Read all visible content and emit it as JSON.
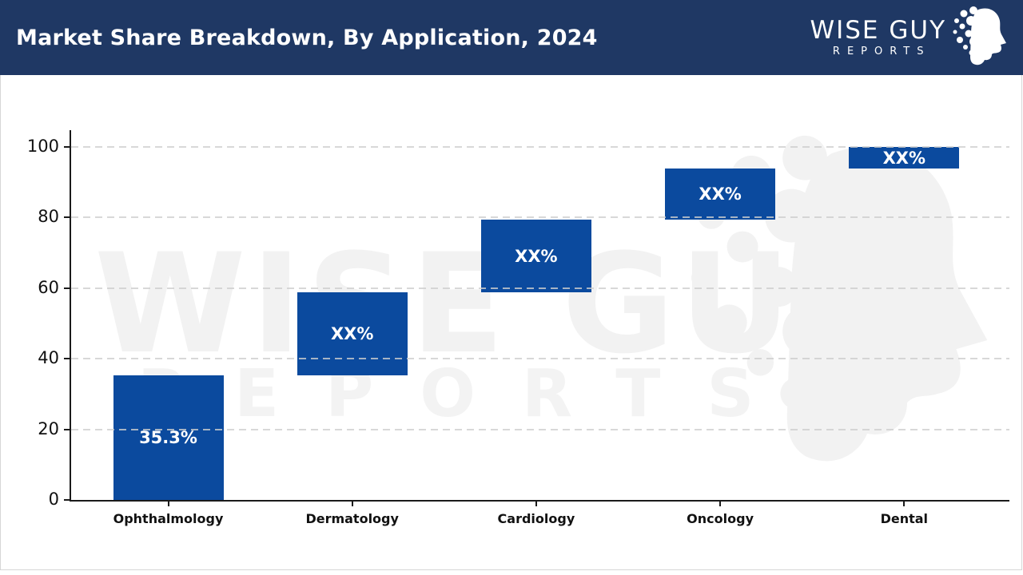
{
  "header": {
    "title": "Market Share Breakdown, By Application, 2024",
    "bg_color": "#1f3864",
    "logo": {
      "line1": "WISE GUY",
      "line2": "REPORTS"
    }
  },
  "watermark": {
    "line1": "WISE GUY",
    "line2": "REPORTS"
  },
  "chart_data": {
    "type": "bar",
    "subtype": "waterfall",
    "title": "Market Share Breakdown, By Application, 2024",
    "categories": [
      "Ophthalmology",
      "Dermatology",
      "Cardiology",
      "Oncology",
      "Dental"
    ],
    "segments": [
      {
        "category": "Ophthalmology",
        "start": 0,
        "end": 35.3,
        "label": "35.3%"
      },
      {
        "category": "Dermatology",
        "start": 35.3,
        "end": 58.8,
        "label": "XX%"
      },
      {
        "category": "Cardiology",
        "start": 58.8,
        "end": 79.4,
        "label": "XX%"
      },
      {
        "category": "Oncology",
        "start": 79.4,
        "end": 93.8,
        "label": "XX%"
      },
      {
        "category": "Dental",
        "start": 93.8,
        "end": 100,
        "label": "XX%"
      }
    ],
    "yticks": [
      0,
      20,
      40,
      60,
      80,
      100
    ],
    "ytick_labels": [
      "0",
      "20",
      "40",
      "60",
      "80",
      "100"
    ],
    "ylim": [
      0,
      105
    ],
    "xlabel": "",
    "ylabel": "",
    "grid": true,
    "grid_style": "dashed",
    "legend": false,
    "bar_color": "#0b4a9e",
    "bar_label_color": "#ffffff"
  }
}
